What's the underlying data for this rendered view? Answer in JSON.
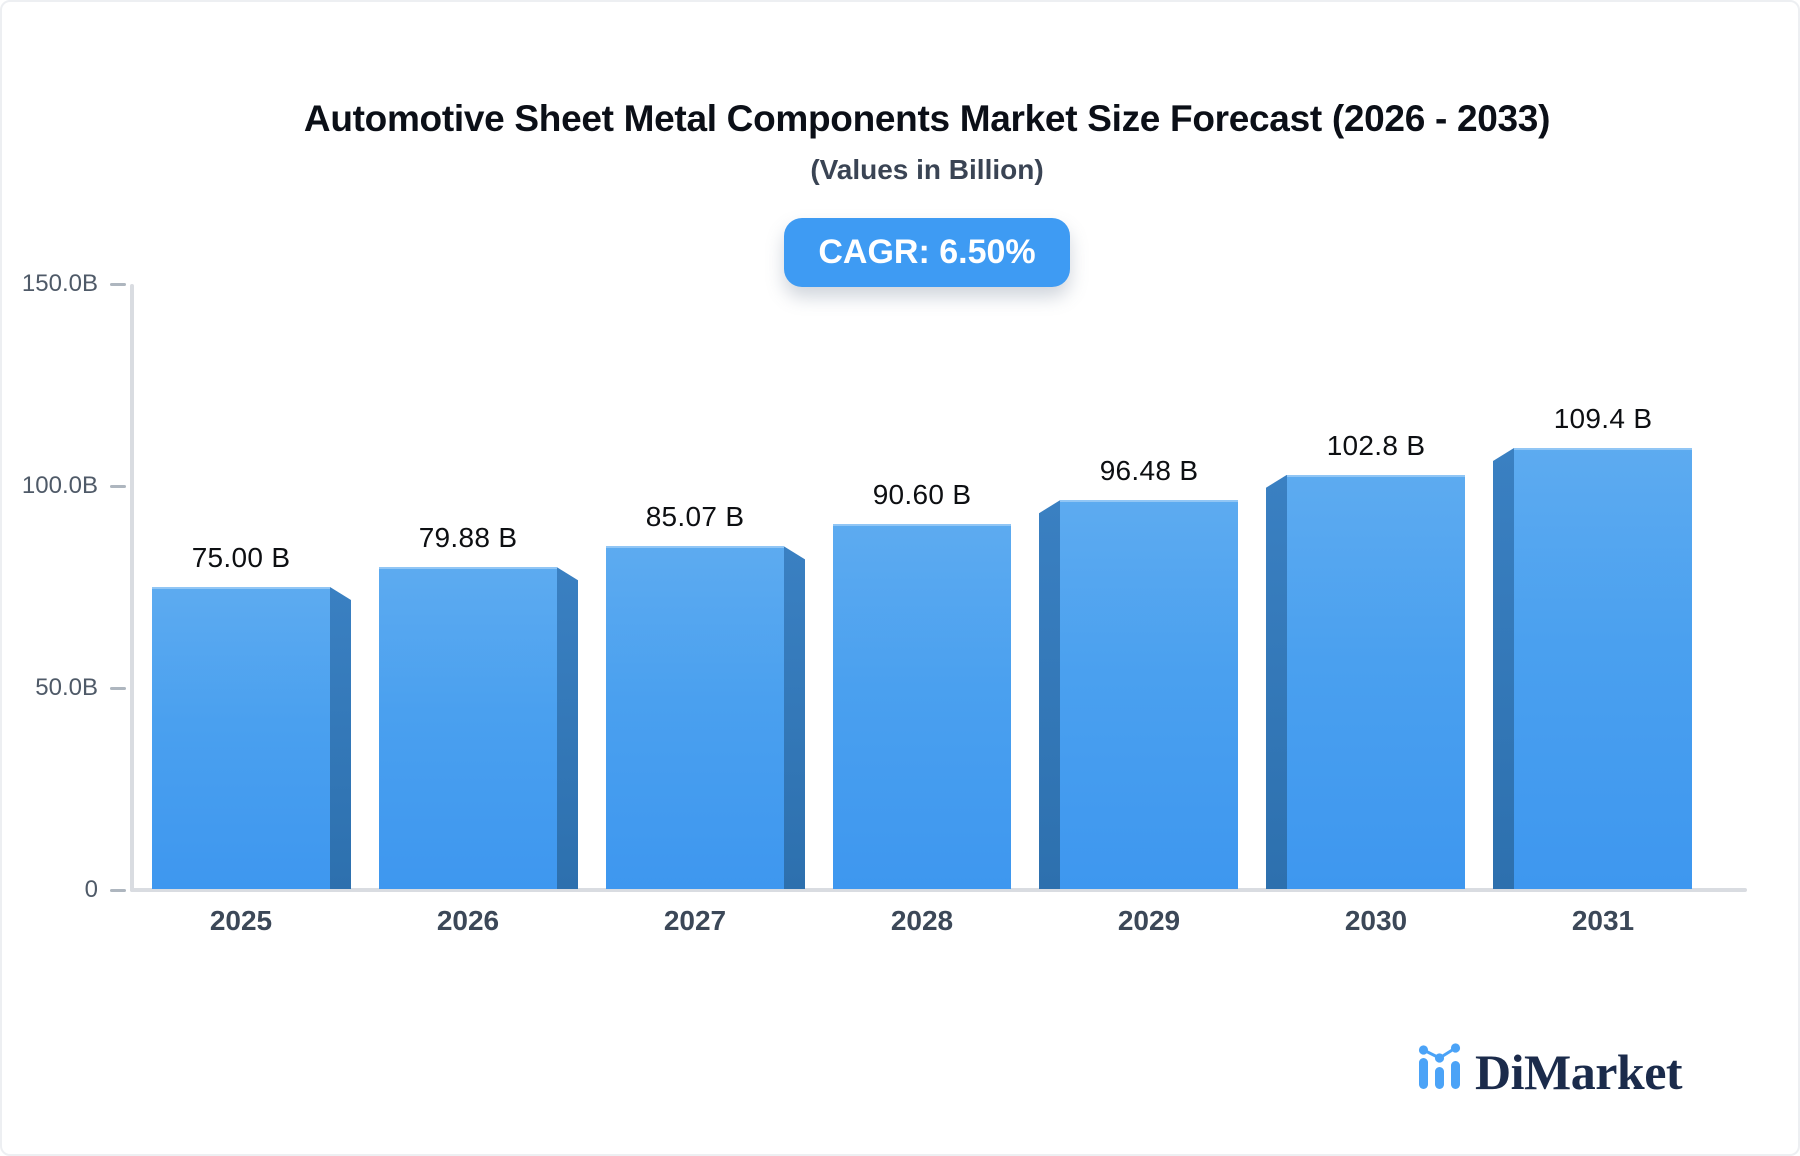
{
  "header": {
    "title": "Automotive Sheet Metal Components Market Size Forecast (2026 - 2033)",
    "subtitle": "(Values in Billion)",
    "cagr_badge": "CAGR: 6.50%"
  },
  "chart_data": {
    "type": "bar",
    "title": "Automotive Sheet Metal Components Market Size Forecast (2026 - 2033)",
    "subtitle": "(Values in Billion)",
    "cagr_text": "CAGR: 6.50%",
    "cagr_percent": 6.5,
    "categories": [
      "2025",
      "2026",
      "2027",
      "2028",
      "2029",
      "2030",
      "2031"
    ],
    "values": [
      75.0,
      79.88,
      85.07,
      90.6,
      96.48,
      102.8,
      109.4
    ],
    "value_labels": [
      "75.00 B",
      "79.88 B",
      "85.07 B",
      "90.60 B",
      "96.48 B",
      "102.8 B",
      "109.4 B"
    ],
    "unit": "Billion",
    "xlabel": "",
    "ylabel": "",
    "ylim": [
      0,
      150
    ],
    "yticks": [
      {
        "value": 0,
        "label": "0"
      },
      {
        "value": 50,
        "label": "50.0B"
      },
      {
        "value": 100,
        "label": "100.0B"
      },
      {
        "value": 150,
        "label": "150.0B"
      }
    ],
    "grid": false,
    "legend": false,
    "bar_3d_sides": [
      "right",
      "right",
      "right",
      "none",
      "left",
      "left",
      "left"
    ],
    "colors": {
      "bar_face_top": "#5DABF0",
      "bar_face_bottom": "#3E97EF",
      "bar_side_dark": "#2E73B3",
      "badge_background": "#3E9BF3",
      "badge_text": "#FFFFFF",
      "axis_line": "#D9DCE1",
      "tick_label": "#4F5A68",
      "category_label": "#3C4858",
      "value_label": "#0D0F12"
    }
  },
  "branding": {
    "logo_text": "DiMarket",
    "logo_icon": "bar-line-chart-icon",
    "logo_text_color": "#1B2B4B",
    "logo_icon_color": "#4BA3F7"
  }
}
